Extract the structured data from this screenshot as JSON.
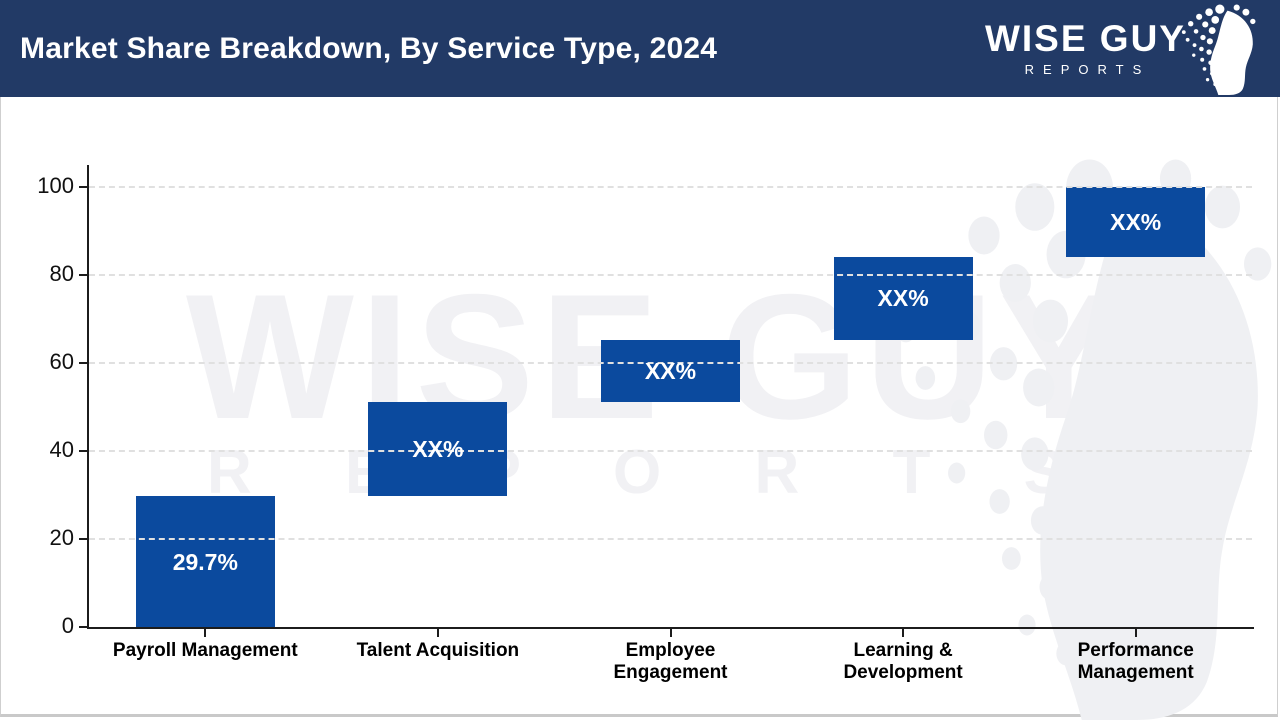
{
  "header": {
    "title": "Market Share Breakdown, By Service Type, 2024",
    "logo_line1": "WISE GUY",
    "logo_line2": "REPORTS"
  },
  "watermark": {
    "line1": "WISE GUY",
    "line2": "R E P O R T S"
  },
  "colors": {
    "header_bg": "#223a66",
    "bar": "#0b4a9e",
    "grid": "#e0e0e0",
    "axis": "#1c1c1c",
    "bar_label_text": "#ffffff",
    "tick_text": "#111111",
    "watermark": "#f1f1f4"
  },
  "chart_data": {
    "type": "bar",
    "variant": "waterfall",
    "title": "Market Share Breakdown, By Service Type, 2024",
    "xlabel": "",
    "ylabel": "",
    "units": "%",
    "ylim": [
      0,
      105
    ],
    "yticks": [
      0,
      20,
      40,
      60,
      80,
      100
    ],
    "grid": "horizontal-dashed",
    "legend": "none",
    "categories": [
      "Payroll Management",
      "Talent Acquisition",
      "Employee Engagement",
      "Learning & Development",
      "Performance Management"
    ],
    "category_lines": [
      [
        "Payroll Management"
      ],
      [
        "Talent Acquisition"
      ],
      [
        "Employee",
        "Engagement"
      ],
      [
        "Learning &",
        "Development"
      ],
      [
        "Performance",
        "Management"
      ]
    ],
    "segments": [
      {
        "category": "Payroll Management",
        "start": 0,
        "end": 29.7,
        "label": "29.7%"
      },
      {
        "category": "Talent Acquisition",
        "start": 29.7,
        "end": 51.2,
        "label": "XX%"
      },
      {
        "category": "Employee Engagement",
        "start": 51.2,
        "end": 65.3,
        "label": "XX%"
      },
      {
        "category": "Learning & Development",
        "start": 65.3,
        "end": 84.2,
        "label": "XX%"
      },
      {
        "category": "Performance Management",
        "start": 84.2,
        "end": 100,
        "label": "XX%"
      }
    ]
  }
}
